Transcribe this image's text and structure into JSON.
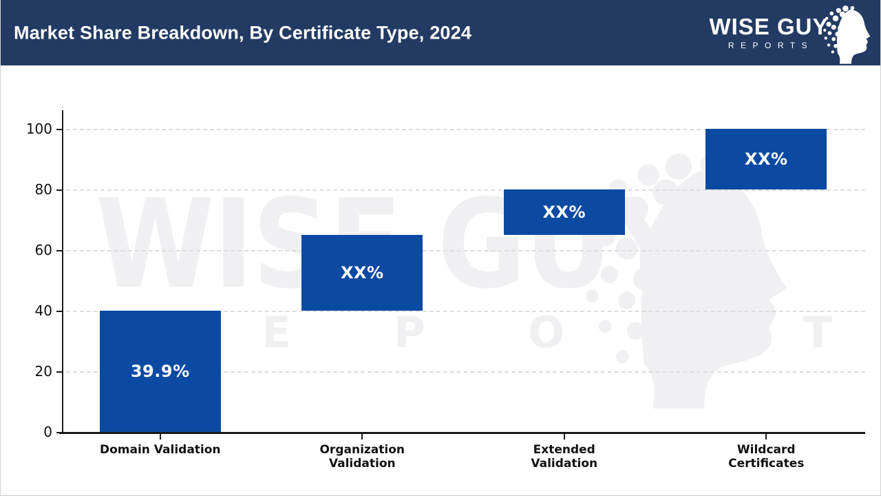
{
  "header": {
    "title": "Market Share Breakdown, By Certificate Type, 2024",
    "logo": {
      "line1": "WISE GUY",
      "line2": "REPORTS"
    }
  },
  "watermark": {
    "line1": "WISE GUY",
    "line2": "R E P O R T S"
  },
  "colors": {
    "header_bg": "#233b63",
    "bar": "#0b4aa2",
    "grid": "#dedede",
    "axis": "#1a1a1a",
    "watermark": "#f0f0f2",
    "bar_label": "#ffffff",
    "title_text": "#ffffff"
  },
  "chart_data": {
    "type": "bar",
    "subtype": "waterfall",
    "title": "Market Share Breakdown, By Certificate Type, 2024",
    "categories": [
      "Domain Validation",
      "Organization Validation",
      "Extended Validation",
      "Wildcard Certificates"
    ],
    "categories_lines": [
      [
        "Domain Validation"
      ],
      [
        "Organization",
        "Validation"
      ],
      [
        "Extended",
        "Validation"
      ],
      [
        "Wildcard",
        "Certificates"
      ]
    ],
    "segments": [
      {
        "category": "Domain Validation",
        "base": 0,
        "top": 39.9,
        "label": "39.9%"
      },
      {
        "category": "Organization Validation",
        "base": 40,
        "top": 65,
        "label": "XX%"
      },
      {
        "category": "Extended Validation",
        "base": 65,
        "top": 80,
        "label": "XX%"
      },
      {
        "category": "Wildcard Certificates",
        "base": 80,
        "top": 100,
        "label": "XX%"
      }
    ],
    "yticks": [
      0,
      20,
      40,
      60,
      80,
      100
    ],
    "ylim": [
      0,
      106
    ],
    "xlabel": "",
    "ylabel": "",
    "grid": "horizontal-dashed",
    "legend": "none"
  }
}
